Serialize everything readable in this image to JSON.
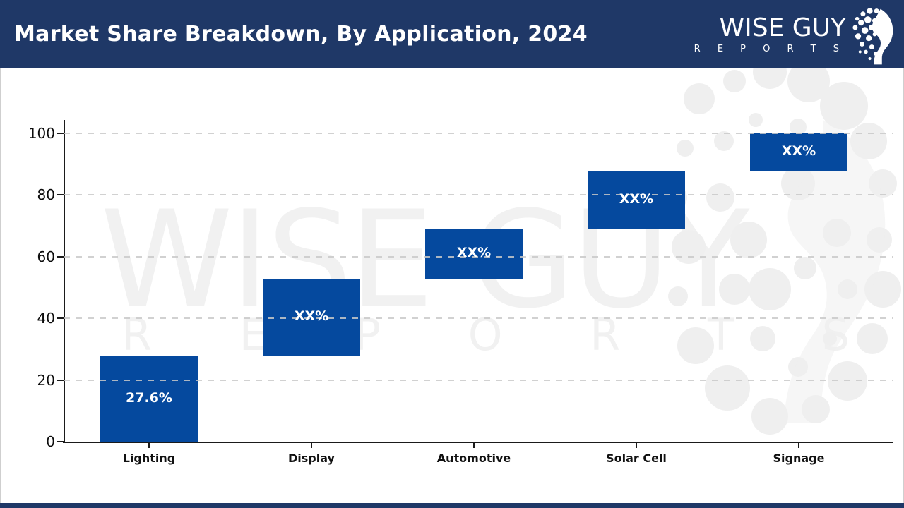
{
  "header": {
    "title": "Market Share Breakdown, By Application, 2024",
    "bg_color": "#1f3867",
    "logo": {
      "line1": "WISE GUY",
      "line2": "REPORTS"
    }
  },
  "watermark": {
    "line1": "WISE GUY",
    "line2": "REPORTS"
  },
  "footer": {
    "bar_color": "#1f3867"
  },
  "chart_data": {
    "type": "bar",
    "subtype": "floating-waterfall",
    "title": "Market Share Breakdown, By Application, 2024",
    "categories": [
      "Lighting",
      "Display",
      "Automotive",
      "Solar Cell",
      "Signage"
    ],
    "segments": [
      {
        "category": "Lighting",
        "start": 0,
        "end": 27.6,
        "label": "27.6%"
      },
      {
        "category": "Display",
        "start": 27.6,
        "end": 52.9,
        "label": "XX%"
      },
      {
        "category": "Automotive",
        "start": 52.9,
        "end": 69.0,
        "label": "XX%"
      },
      {
        "category": "Solar Cell",
        "start": 69.0,
        "end": 87.7,
        "label": "XX%"
      },
      {
        "category": "Signage",
        "start": 87.7,
        "end": 100,
        "label": "XX%"
      }
    ],
    "y_ticks": [
      0,
      20,
      40,
      60,
      80,
      100
    ],
    "ylim": [
      0,
      105
    ],
    "xlabel": "",
    "ylabel": "",
    "bar_color": "#05499e",
    "grid": "horizontal-dashed",
    "grid_color": "#c9c9c9",
    "legend": "none"
  }
}
